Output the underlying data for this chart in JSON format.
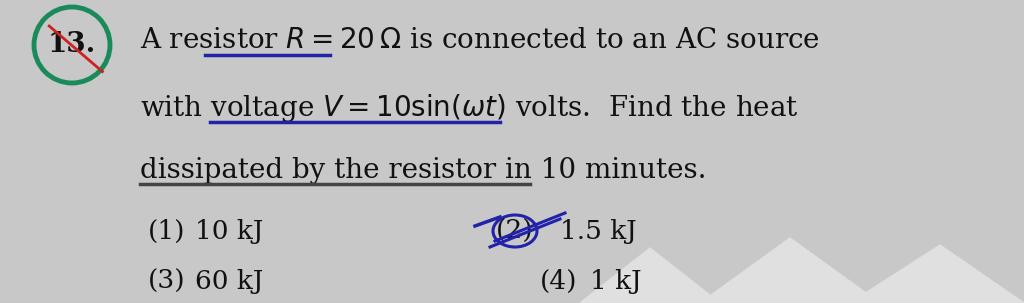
{
  "background_color": "#c8c8c8",
  "question_number": "13.",
  "circle_color": "#1a8a5a",
  "circle_linewidth": 3.5,
  "red_slash_color": "#cc2222",
  "line1": "A resistor $R = 20\\,\\Omega$ is connected to an AC source",
  "line2": "with voltage $V = 10\\sin(\\omega t)$ volts.  Find the heat",
  "line3": "dissipated by the resistor in 10 minutes.",
  "opt1_label": "(1)",
  "opt1_val": "10 kJ",
  "opt2_label": "(2)",
  "opt2_val": "1.5 kJ",
  "opt3_label": "(3)",
  "opt3_val": "60 kJ",
  "opt4_label": "(4)",
  "opt4_val": "1 kJ",
  "underline_color_blue": "#2222aa",
  "underline_color_dark": "#444444",
  "answer_mark_color": "#2222aa",
  "font_size_main": 20,
  "font_size_options": 19,
  "font_size_number": 20,
  "text_color": "#111111",
  "mountain_color": "#e0e0e0"
}
